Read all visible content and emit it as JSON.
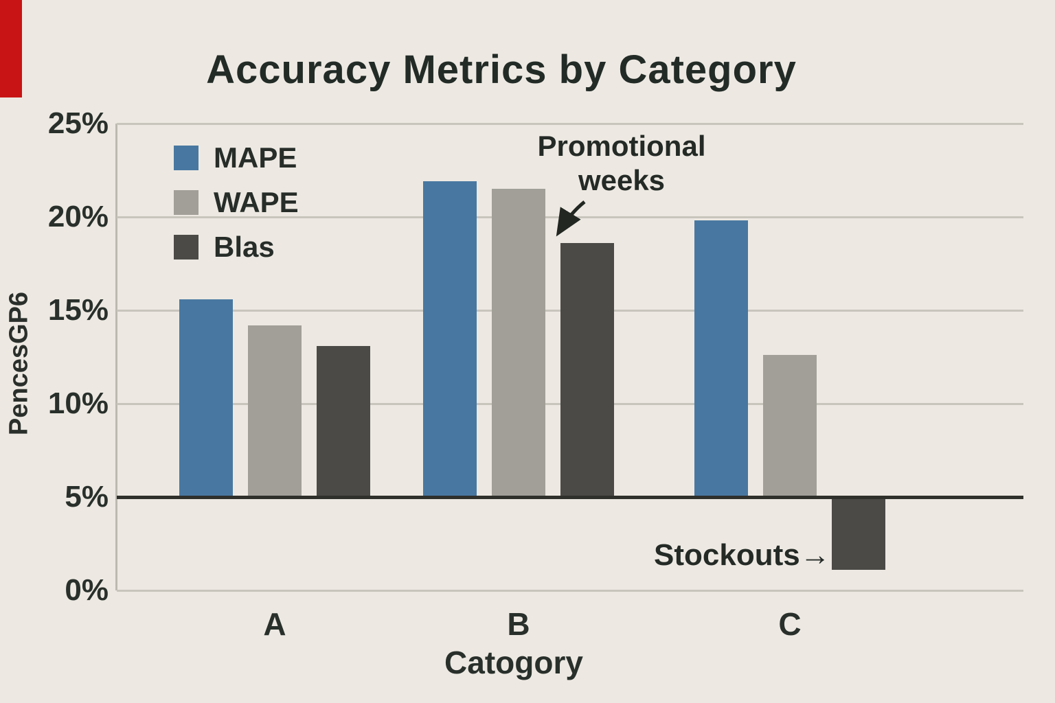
{
  "title": "Accuracy Metrics by Category",
  "axes": {
    "y_ticks": [
      "25%",
      "20%",
      "15%",
      "10%",
      "5%",
      "0%"
    ],
    "y_label": "PencesGP6",
    "x_label": "Catogory",
    "x_ticks": [
      "A",
      "B",
      "C"
    ]
  },
  "legend": [
    {
      "label": "MAPE",
      "color": "#4878a1"
    },
    {
      "label": "WAPE",
      "color": "#a19f98"
    },
    {
      "label": "Blas",
      "color": "#4b4a47"
    }
  ],
  "annotations": {
    "promo": "Promotional weeks",
    "stockouts": "Stockouts→"
  },
  "colors": {
    "background": "#ede9e2",
    "gridline": "#c8c5bd",
    "baseline": "#2f2f2b",
    "text": "#252b27",
    "red_artifact": "#c81414"
  },
  "chart_data": {
    "type": "bar",
    "title": "Accuracy Metrics by Category",
    "categories": [
      "A",
      "B",
      "C"
    ],
    "series": [
      {
        "name": "MAPE",
        "color": "#4878a1",
        "values": [
          15.6,
          21.9,
          19.8
        ]
      },
      {
        "name": "WAPE",
        "color": "#a19f98",
        "values": [
          14.2,
          21.5,
          12.6
        ]
      },
      {
        "name": "Blas",
        "color": "#4b4a47",
        "values": [
          13.1,
          18.6,
          1.1
        ]
      }
    ],
    "xlabel": "Catogory",
    "ylabel": "PencesGP6",
    "ylim": [
      0,
      25
    ],
    "baseline": 5,
    "grid": true,
    "legend_position": "upper-left",
    "note": "Bars rise from the 5% baseline line; Category C Blas bar extends below the baseline down to ~1%. Annotation arrow 'Promotional weeks' points to Category B Blas bar; 'Stockouts→' points to Category C Blas bar."
  }
}
